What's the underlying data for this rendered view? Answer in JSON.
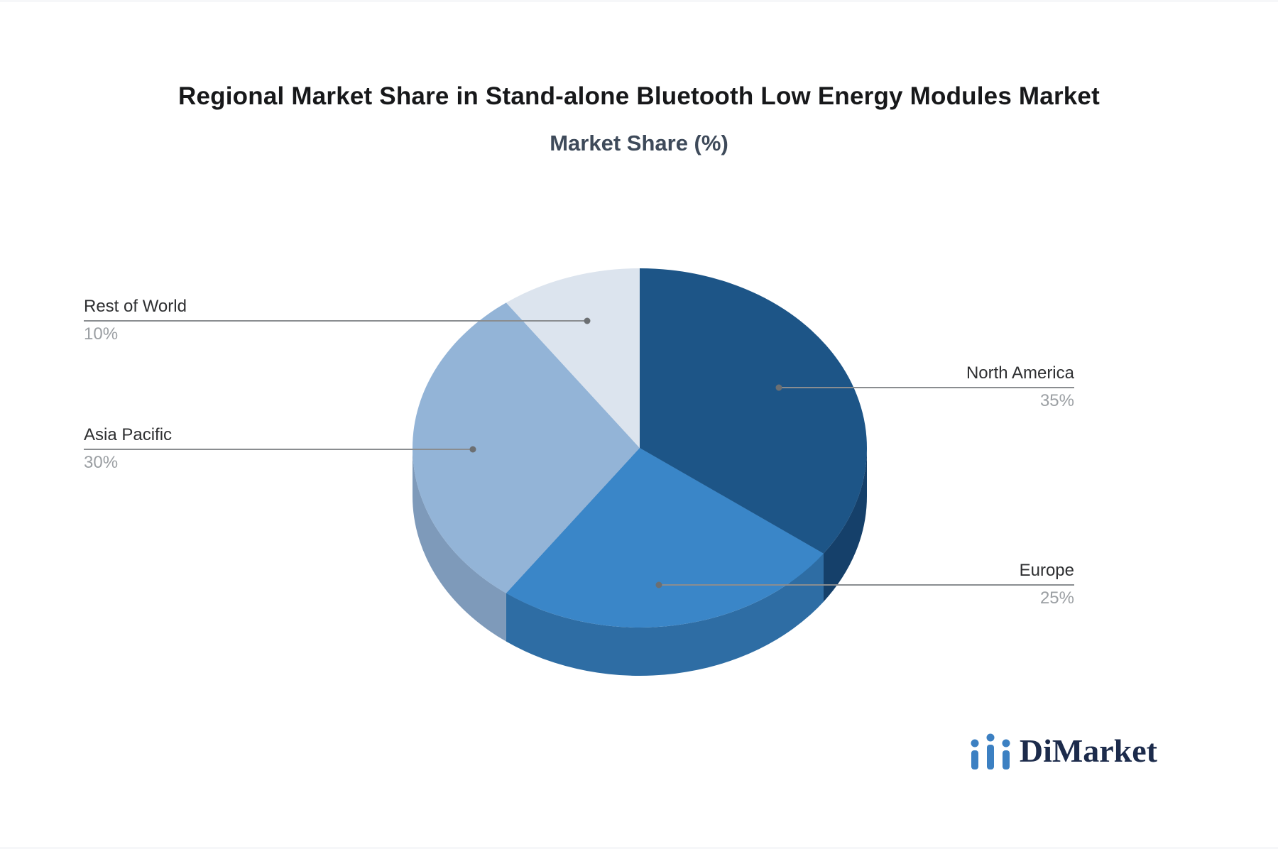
{
  "header": {
    "title": "Regional Market Share in Stand-alone Bluetooth Low Energy Modules Market",
    "subtitle": "Market Share (%)"
  },
  "chart_data": {
    "type": "pie",
    "title": "Regional Market Share in Stand-alone Bluetooth Low Energy Modules Market",
    "subtitle": "Market Share (%)",
    "unit": "%",
    "style": "3d",
    "start_angle_deg": 0,
    "direction": "clockwise",
    "labels": [
      "North America",
      "Europe",
      "Asia Pacific",
      "Rest of World"
    ],
    "values": [
      35,
      25,
      30,
      10
    ],
    "colors": [
      "#1d5587",
      "#3a86c8",
      "#93b4d7",
      "#dce4ee"
    ],
    "side_colors": [
      "#15406a",
      "#2e6da4",
      "#7e9aba",
      "#b9c6d9"
    ],
    "legend": "none",
    "data_labels": [
      "North America 35%",
      "Europe 25%",
      "Asia Pacific 30%",
      "Rest of World 10%"
    ]
  },
  "callouts": [
    {
      "name": "North America",
      "pct": "35%",
      "side": "right"
    },
    {
      "name": "Europe",
      "pct": "25%",
      "side": "right"
    },
    {
      "name": "Asia Pacific",
      "pct": "30%",
      "side": "left"
    },
    {
      "name": "Rest of World",
      "pct": "10%",
      "side": "left"
    }
  ],
  "logo": {
    "text": "DiMarket",
    "icon": "bar-chart-logo-icon",
    "text_color": "#1c2b4b",
    "icon_color": "#3c80c2"
  },
  "colors": {
    "background": "#ffffff",
    "connector_line": "#8a8d90",
    "connector_dot": "#6c6f72",
    "label_name": "#2e2f31",
    "label_pct": "#9b9fa3"
  }
}
